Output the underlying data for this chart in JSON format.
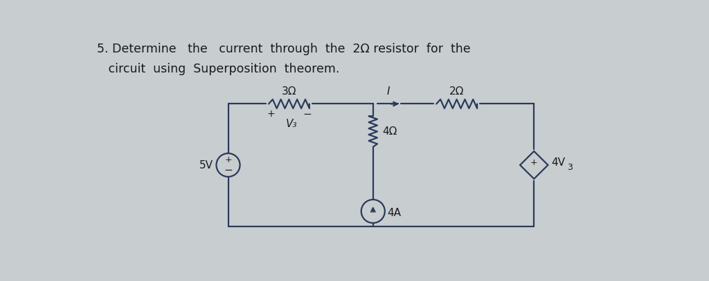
{
  "title_line1": "5. Determine   the   current  through  the  2Ω resistor  for  the",
  "title_line2": "   circuit  using  Superposition  theorem.",
  "bg_color": "#c8cdd0",
  "text_color": "#1a1a1a",
  "wire_color": "#2a3a5a",
  "circuit": {
    "left_source_label": "5V",
    "left_source_sign_top": "+",
    "left_source_sign_bot": "−",
    "top_left_resistor": "3Ω",
    "top_left_resistor_label_below": "V₃",
    "top_left_resistor_sign_plus": "+",
    "top_left_resistor_sign_minus": "−",
    "middle_resistor": "4Ω",
    "top_right_resistor": "2Ω",
    "current_label": "I",
    "current_source_label": "4A",
    "right_source_label": "4V",
    "right_source_subscript": "3",
    "right_source_sign": "+"
  },
  "TL": [
    2.6,
    2.75
  ],
  "TM": [
    5.3,
    2.75
  ],
  "TR": [
    8.3,
    2.75
  ],
  "BL": [
    2.6,
    0.45
  ],
  "BM": [
    5.3,
    0.45
  ],
  "BR": [
    8.3,
    0.45
  ]
}
